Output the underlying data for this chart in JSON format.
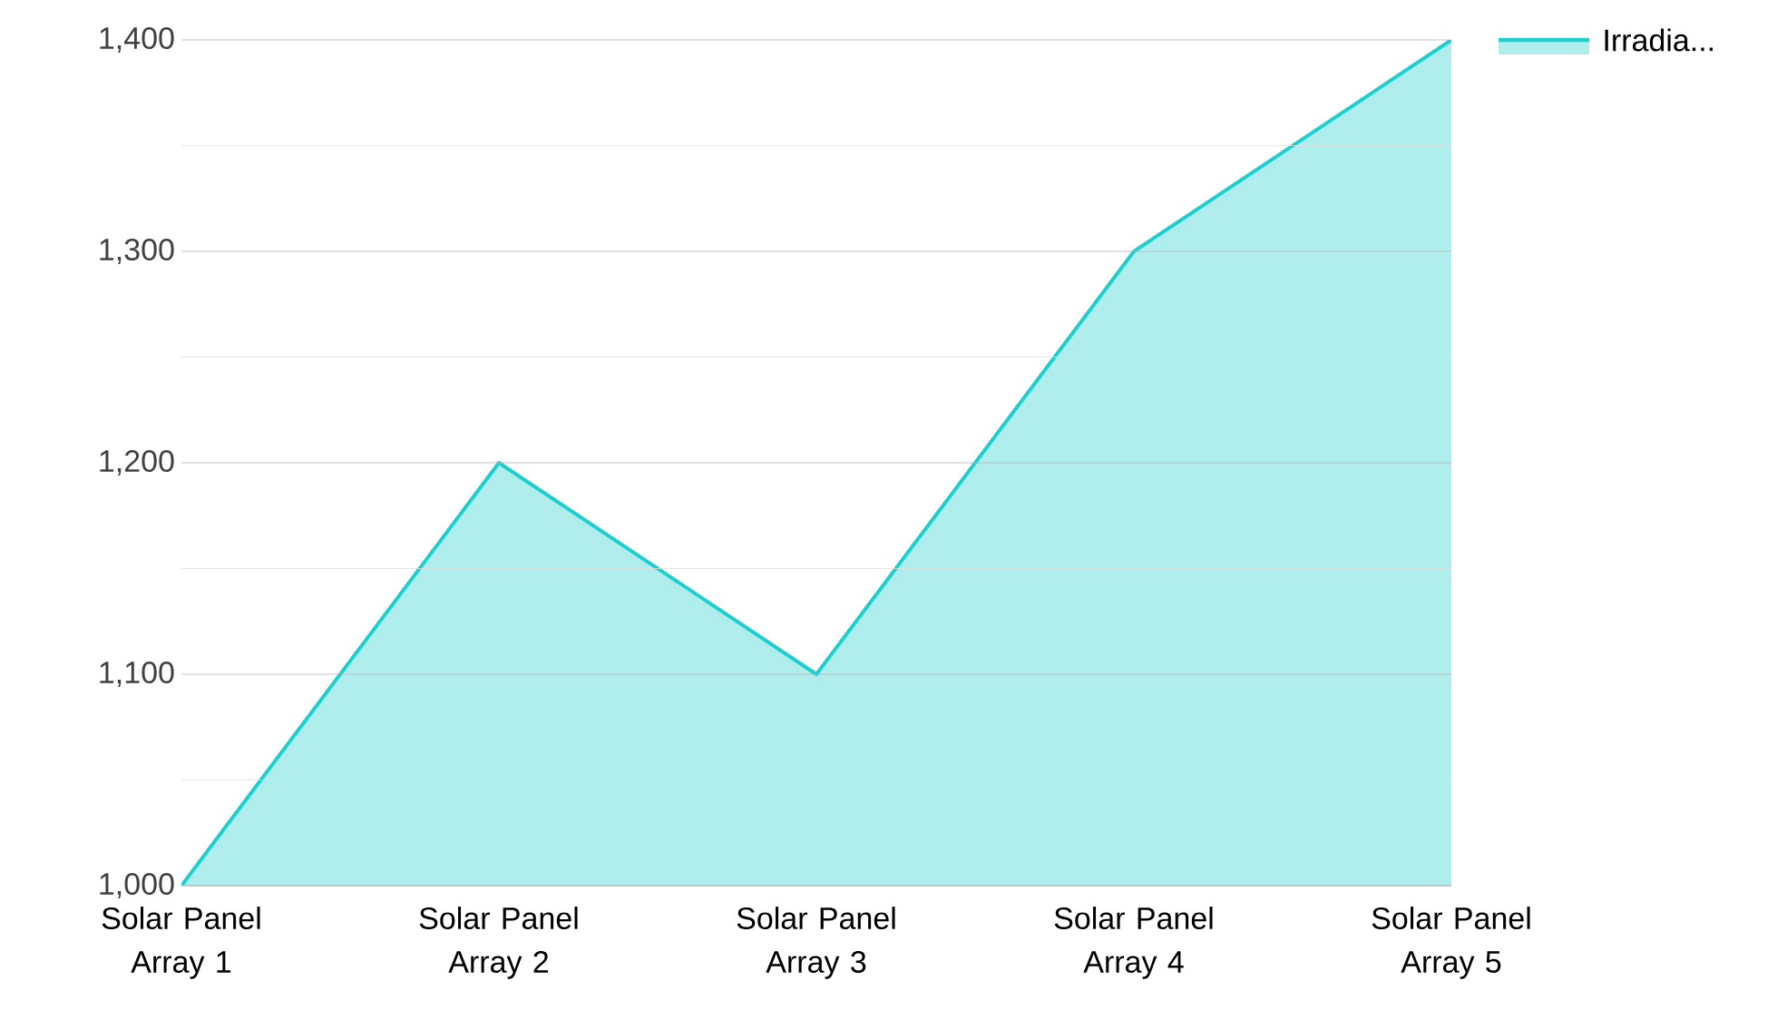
{
  "chart_data": {
    "type": "area",
    "categories": [
      "Solar Panel Array 1",
      "Solar Panel Array 2",
      "Solar Panel Array 3",
      "Solar Panel Array 4",
      "Solar Panel Array 5"
    ],
    "series": [
      {
        "name": "Irradia...",
        "color": "#1dcfcf",
        "values": [
          1000,
          1200,
          1100,
          1300,
          1400
        ]
      }
    ],
    "ylim": [
      1000,
      1400
    ],
    "yticks": [
      {
        "value": 1000,
        "label": "1,000"
      },
      {
        "value": 1100,
        "label": "1,100"
      },
      {
        "value": 1200,
        "label": "1,200"
      },
      {
        "value": 1300,
        "label": "1,300"
      },
      {
        "value": 1400,
        "label": "1,400"
      }
    ],
    "grid": "y",
    "legend": "top right"
  }
}
